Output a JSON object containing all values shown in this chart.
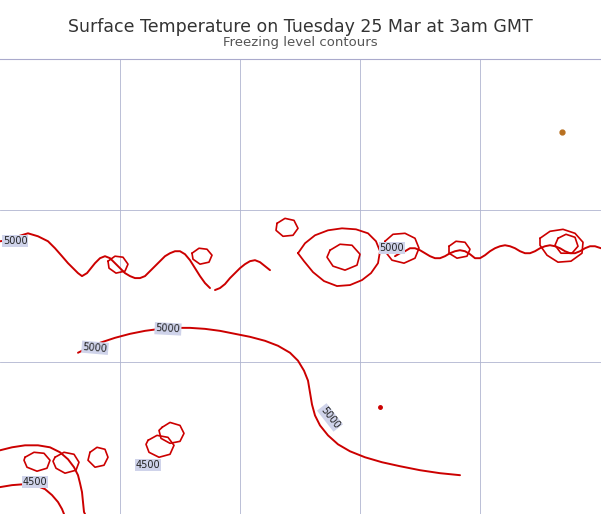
{
  "title": "Surface Temperature on Tuesday 25 Mar at 3am GMT",
  "subtitle": "Freezing level contours",
  "title_color": "#333333",
  "subtitle_color": "#555555",
  "map_bg": "#cfd3ea",
  "header_bg": "#ffffff",
  "contour_color": "#cc0000",
  "grid_color": "#b0b4d0",
  "border_color": "#aaaacc",
  "figsize": [
    6.01,
    5.14
  ],
  "dpi": 100,
  "title_fontsize": 12.5,
  "subtitle_fontsize": 9.5,
  "label_fontsize": 7,
  "label_color": "#222222"
}
